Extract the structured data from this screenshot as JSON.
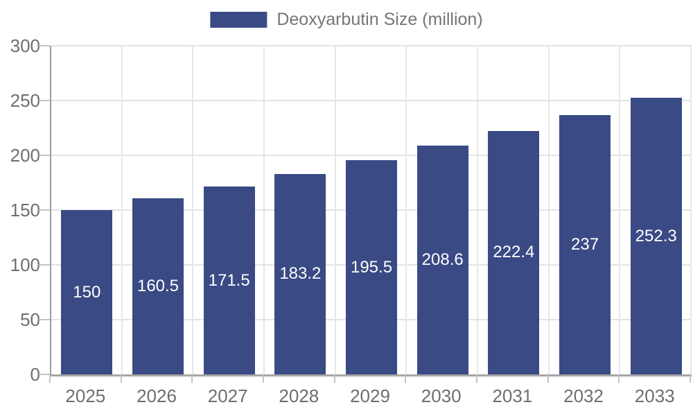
{
  "legend": {
    "label": "Deoxyarbutin Size (million)"
  },
  "chart_data": {
    "type": "bar",
    "title": "Deoxyarbutin Size (million)",
    "categories": [
      "2025",
      "2026",
      "2027",
      "2028",
      "2029",
      "2030",
      "2031",
      "2032",
      "2033"
    ],
    "values": [
      150,
      160.5,
      171.5,
      183.2,
      195.5,
      208.6,
      222.4,
      237,
      252.3
    ],
    "value_labels": [
      "150",
      "160.5",
      "171.5",
      "183.2",
      "195.5",
      "208.6",
      "222.4",
      "237",
      "252.3"
    ],
    "xlabel": "",
    "ylabel": "",
    "ylim": [
      0,
      300
    ],
    "yticks": [
      0,
      50,
      100,
      150,
      200,
      250,
      300
    ],
    "grid": true,
    "legend_position": "top-center",
    "colors": {
      "bar": "#3a4a84",
      "value_label": "#ffffff",
      "axis_label": "#6e6e6e",
      "legend_text": "#757575",
      "grid_h": "#e3e3e3",
      "grid_v": "#e7e7e7",
      "axis_line_y": "#9b9b9b",
      "axis_line_x": "#a6a6a6",
      "tick": "#c4c4c4"
    }
  }
}
